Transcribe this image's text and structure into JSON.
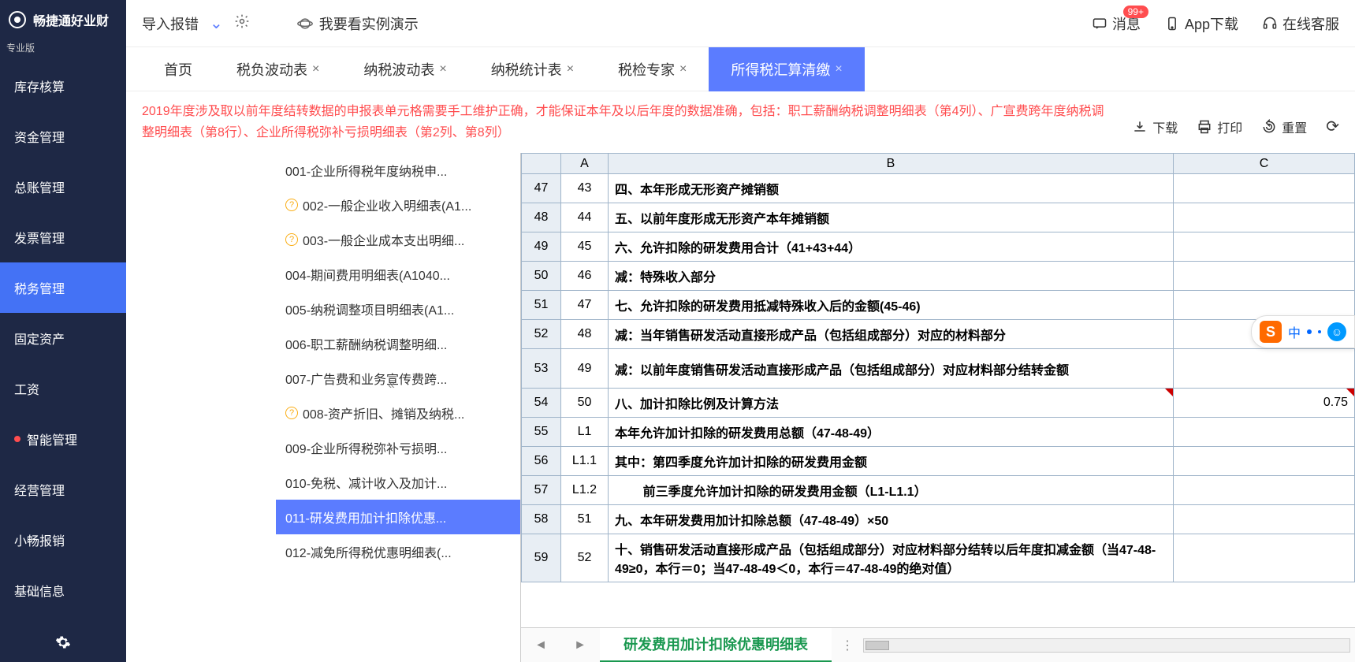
{
  "brand": {
    "name": "畅捷通好业财",
    "edition": "专业版"
  },
  "sidebar": {
    "items": [
      {
        "label": "库存核算",
        "active": false,
        "dot": false
      },
      {
        "label": "资金管理",
        "active": false,
        "dot": false
      },
      {
        "label": "总账管理",
        "active": false,
        "dot": false
      },
      {
        "label": "发票管理",
        "active": false,
        "dot": false
      },
      {
        "label": "税务管理",
        "active": true,
        "dot": false
      },
      {
        "label": "固定资产",
        "active": false,
        "dot": false
      },
      {
        "label": "工资",
        "active": false,
        "dot": false
      },
      {
        "label": "智能管理",
        "active": false,
        "dot": true
      },
      {
        "label": "经营管理",
        "active": false,
        "dot": false
      },
      {
        "label": "小畅报销",
        "active": false,
        "dot": false
      },
      {
        "label": "基础信息",
        "active": false,
        "dot": false
      }
    ]
  },
  "topbar": {
    "import": "导入报错",
    "demo": "我要看实例演示",
    "msg": "消息",
    "msg_badge": "99+",
    "app": "App下载",
    "service": "在线客服"
  },
  "tabs": [
    {
      "label": "首页",
      "closable": false,
      "active": false
    },
    {
      "label": "税负波动表",
      "closable": true,
      "active": false
    },
    {
      "label": "纳税波动表",
      "closable": true,
      "active": false
    },
    {
      "label": "纳税统计表",
      "closable": true,
      "active": false
    },
    {
      "label": "税检专家",
      "closable": true,
      "active": false
    },
    {
      "label": "所得税汇算清缴",
      "closable": true,
      "active": true
    }
  ],
  "notice": "2019年度涉及取以前年度结转数据的申报表单元格需要手工维护正确，才能保证本年及以后年度的数据准确，包括：职工薪酬纳税调整明细表（第4列）、广宣费跨年度纳税调整明细表（第8行）、企业所得税弥补亏损明细表（第2列、第8列）",
  "actions": {
    "download": "下载",
    "print": "打印",
    "reset": "重置"
  },
  "forms": [
    {
      "label": "001-企业所得税年度纳税申...",
      "q": false,
      "active": false
    },
    {
      "label": "002-一般企业收入明细表(A1...",
      "q": true,
      "active": false
    },
    {
      "label": "003-一般企业成本支出明细...",
      "q": true,
      "active": false
    },
    {
      "label": "004-期间费用明细表(A1040...",
      "q": false,
      "active": false
    },
    {
      "label": "005-纳税调整项目明细表(A1...",
      "q": false,
      "active": false
    },
    {
      "label": "006-职工薪酬纳税调整明细...",
      "q": false,
      "active": false
    },
    {
      "label": "007-广告费和业务宣传费跨...",
      "q": false,
      "active": false
    },
    {
      "label": "008-资产折旧、摊销及纳税...",
      "q": true,
      "active": false
    },
    {
      "label": "009-企业所得税弥补亏损明...",
      "q": false,
      "active": false
    },
    {
      "label": "010-免税、减计收入及加计...",
      "q": false,
      "active": false
    },
    {
      "label": "011-研发费用加计扣除优惠...",
      "q": false,
      "active": true
    },
    {
      "label": "012-减免所得税优惠明细表(...",
      "q": false,
      "active": false
    }
  ],
  "grid": {
    "col_headers": [
      "A",
      "B",
      "C"
    ],
    "rows": [
      {
        "n": "47",
        "a": "43",
        "b": "四、本年形成无形资产摊销额",
        "c": ""
      },
      {
        "n": "48",
        "a": "44",
        "b": "五、以前年度形成无形资产本年摊销额",
        "c": ""
      },
      {
        "n": "49",
        "a": "45",
        "b": "六、允许扣除的研发费用合计（41+43+44）",
        "c": ""
      },
      {
        "n": "50",
        "a": "46",
        "b": "减：特殊收入部分",
        "c": ""
      },
      {
        "n": "51",
        "a": "47",
        "b": "七、允许扣除的研发费用抵减特殊收入后的金额(45-46)",
        "c": ""
      },
      {
        "n": "52",
        "a": "48",
        "b": "减：当年销售研发活动直接形成产品（包括组成部分）对应的材料部分",
        "c": ""
      },
      {
        "n": "53",
        "a": "49",
        "b": "减：以前年度销售研发活动直接形成产品（包括组成部分）对应材料部分结转金额",
        "c": "",
        "tall": true
      },
      {
        "n": "54",
        "a": "50",
        "b": "八、加计扣除比例及计算方法",
        "c": "0.75",
        "mark": true
      },
      {
        "n": "55",
        "a": "L1",
        "b": "本年允许加计扣除的研发费用总额（47-48-49）",
        "c": ""
      },
      {
        "n": "56",
        "a": "L1.1",
        "b": "其中：第四季度允许加计扣除的研发费用金额",
        "c": ""
      },
      {
        "n": "57",
        "a": "L1.2",
        "b": "        前三季度允许加计扣除的研发费用金额（L1-L1.1）",
        "c": ""
      },
      {
        "n": "58",
        "a": "51",
        "b": "九、本年研发费用加计扣除总额（47-48-49）×50",
        "c": ""
      },
      {
        "n": "59",
        "a": "52",
        "b": "十、销售研发活动直接形成产品（包括组成部分）对应材料部分结转以后年度扣减金额（当47-48-49≥0，本行＝0；当47-48-49＜0，本行＝47-48-49的绝对值）",
        "c": "",
        "tall": true
      }
    ]
  },
  "sheet_tab": "研发费用加计扣除优惠明细表",
  "widget": {
    "s": "S",
    "zh": "中"
  }
}
